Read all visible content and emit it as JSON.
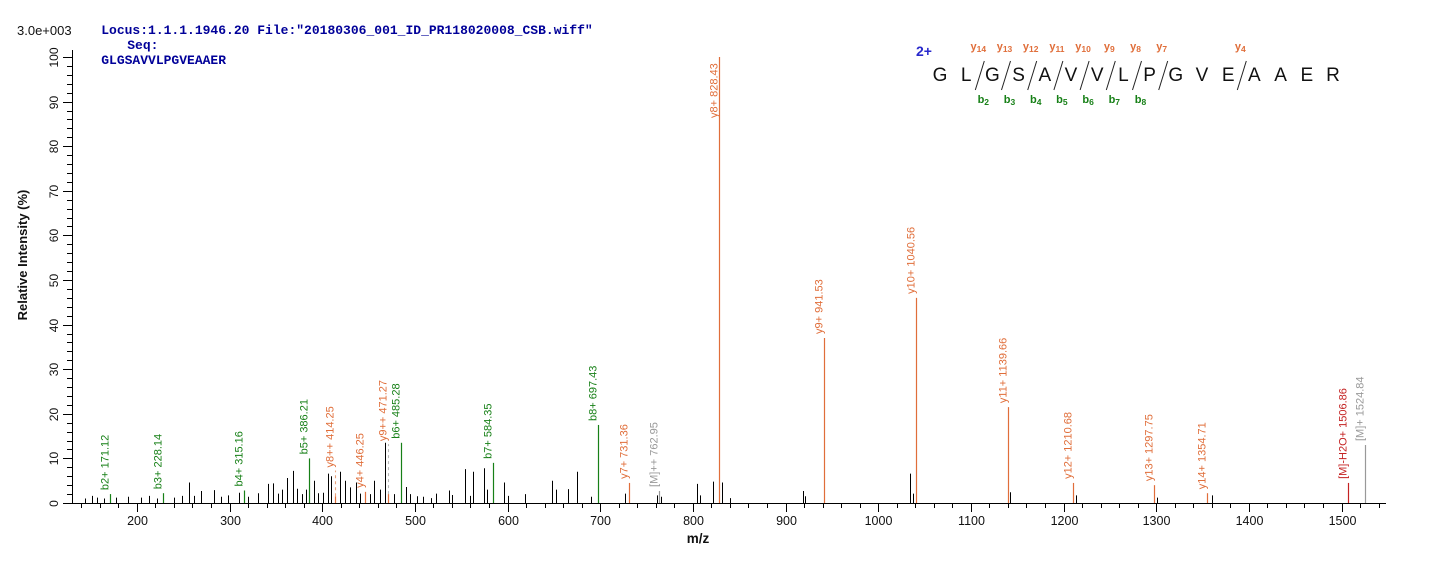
{
  "header": {
    "locus_file": "Locus:1.1.1.1946.20 File:\"20180306_001_ID_PR118020008_CSB.wiff\"",
    "seq_label": "Seq:",
    "seq": "GLGSAVVLPGVEAAER"
  },
  "scale_label": "3.0e+003",
  "colors": {
    "b_ion": "#178017",
    "y_ion": "#E06E3A",
    "precursor": "#999999",
    "precursor_loss": "#C42222",
    "header_text": "#000099",
    "charge_label": "#2929CC",
    "axis": "#000000",
    "background_peak": "#000000",
    "leader_dash_orange": "#E8A37E",
    "leader_dash_gray": "#b8b8b8"
  },
  "chart_data": {
    "type": "bar",
    "title": "",
    "xlabel": "m/z",
    "ylabel": "Relative  Intensity (%)",
    "x_axis_range": [
      130,
      1548
    ],
    "ylim": [
      0,
      100
    ],
    "x_major_ticks": [
      200,
      300,
      400,
      500,
      600,
      700,
      800,
      900,
      1000,
      1100,
      1200,
      1300,
      1400,
      1500
    ],
    "x_minor_step": 20,
    "y_major_step": 10,
    "y_minor_step": 2,
    "intensity_scale_max": "3.0e+003",
    "peaks": [
      {
        "mz": 171.12,
        "intensity": 2.0,
        "label": "b2+ 171.12",
        "series": "b"
      },
      {
        "mz": 228.14,
        "intensity": 2.2,
        "label": "b3+ 228.14",
        "series": "b"
      },
      {
        "mz": 315.16,
        "intensity": 2.8,
        "label": "b4+ 315.16",
        "series": "b"
      },
      {
        "mz": 386.21,
        "intensity": 10.0,
        "label": "b5+ 386.21",
        "series": "b"
      },
      {
        "mz": 414.25,
        "intensity": 1.5,
        "label": "y8++ 414.25",
        "series": "y",
        "leader_top": 7.3,
        "leader_color": "leader_dash_orange"
      },
      {
        "mz": 446.25,
        "intensity": 2.5,
        "label": "y4+ 446.25",
        "series": "y"
      },
      {
        "mz": 471.27,
        "intensity": 2.0,
        "label": "y9++ 471.27",
        "series": "y",
        "leader_top": 13.2,
        "leader_color": "leader_dash_gray"
      },
      {
        "mz": 485.28,
        "intensity": 13.5,
        "label": "b6+ 485.28",
        "series": "b"
      },
      {
        "mz": 584.35,
        "intensity": 9.0,
        "label": "b7+ 584.35",
        "series": "b"
      },
      {
        "mz": 697.43,
        "intensity": 17.5,
        "label": "b8+ 697.43",
        "series": "b"
      },
      {
        "mz": 731.36,
        "intensity": 4.5,
        "label": "y7+ 731.36",
        "series": "y"
      },
      {
        "mz": 762.95,
        "intensity": 2.7,
        "label": "[M]++ 762.95",
        "series": "precursor"
      },
      {
        "mz": 828.43,
        "intensity": 100.0,
        "label": "y8+ 828.43",
        "series": "y"
      },
      {
        "mz": 941.53,
        "intensity": 37.0,
        "label": "y9+ 941.53",
        "series": "y"
      },
      {
        "mz": 1040.56,
        "intensity": 46.0,
        "label": "y10+ 1040.56",
        "series": "y"
      },
      {
        "mz": 1139.66,
        "intensity": 21.5,
        "label": "y11+ 1139.66",
        "series": "y"
      },
      {
        "mz": 1210.68,
        "intensity": 4.5,
        "label": "y12+ 1210.68",
        "series": "y"
      },
      {
        "mz": 1297.75,
        "intensity": 4.0,
        "label": "y13+ 1297.75",
        "series": "y"
      },
      {
        "mz": 1354.71,
        "intensity": 2.2,
        "label": "y14+ 1354.71",
        "series": "y"
      },
      {
        "mz": 1506.86,
        "intensity": 4.5,
        "label": "[M]-H2O+ 1506.86",
        "series": "precursor_loss"
      },
      {
        "mz": 1524.84,
        "intensity": 13.0,
        "label": "[M]+ 1524.84",
        "series": "precursor"
      }
    ],
    "background_peaks": [
      [
        144,
        1.0
      ],
      [
        152,
        1.6
      ],
      [
        157,
        1.2
      ],
      [
        164,
        1.0
      ],
      [
        178,
        1.2
      ],
      [
        190,
        1.4
      ],
      [
        205,
        1.2
      ],
      [
        213,
        1.6
      ],
      [
        222,
        1.0
      ],
      [
        240,
        1.2
      ],
      [
        249,
        1.6
      ],
      [
        256,
        4.6
      ],
      [
        262,
        1.6
      ],
      [
        269,
        2.7
      ],
      [
        283,
        2.9
      ],
      [
        291,
        1.4
      ],
      [
        298,
        1.7
      ],
      [
        310,
        2.3
      ],
      [
        320,
        1.4
      ],
      [
        331,
        2.2
      ],
      [
        341,
        4.3
      ],
      [
        347,
        4.4
      ],
      [
        352,
        2.1
      ],
      [
        357,
        3.0
      ],
      [
        362,
        5.6
      ],
      [
        368,
        7.2
      ],
      [
        373,
        3.2
      ],
      [
        378,
        2.0
      ],
      [
        383,
        3.0
      ],
      [
        391,
        5.0
      ],
      [
        396,
        2.2
      ],
      [
        401,
        2.3
      ],
      [
        406,
        6.6
      ],
      [
        410,
        6.0
      ],
      [
        419,
        7.0
      ],
      [
        425,
        5.0
      ],
      [
        430,
        3.5
      ],
      [
        436,
        4.6
      ],
      [
        441,
        2.1
      ],
      [
        452,
        2.0
      ],
      [
        456,
        5.0
      ],
      [
        462,
        3.0
      ],
      [
        468,
        13.5
      ],
      [
        478,
        2.0
      ],
      [
        490,
        3.6
      ],
      [
        495,
        2.0
      ],
      [
        502,
        1.5
      ],
      [
        509,
        1.4
      ],
      [
        517,
        1.1
      ],
      [
        523,
        2.1
      ],
      [
        537,
        2.8
      ],
      [
        540,
        1.8
      ],
      [
        554,
        7.6
      ],
      [
        559,
        1.6
      ],
      [
        563,
        7.0
      ],
      [
        575,
        7.8
      ],
      [
        578,
        3.0
      ],
      [
        596,
        4.6
      ],
      [
        601,
        1.6
      ],
      [
        619,
        2.0
      ],
      [
        648,
        5.0
      ],
      [
        652,
        3.0
      ],
      [
        665,
        3.1
      ],
      [
        675,
        7.0
      ],
      [
        690,
        1.4
      ],
      [
        727,
        2.1
      ],
      [
        761,
        1.7
      ],
      [
        766,
        1.4
      ],
      [
        805,
        4.3
      ],
      [
        808,
        1.7
      ],
      [
        822,
        4.8
      ],
      [
        831,
        4.6
      ],
      [
        840,
        1.1
      ],
      [
        919,
        2.7
      ],
      [
        921,
        1.5
      ],
      [
        1034,
        6.6
      ],
      [
        1038,
        2.1
      ],
      [
        1142,
        2.4
      ],
      [
        1213,
        1.7
      ],
      [
        1301,
        1.2
      ],
      [
        1360,
        1.7
      ]
    ]
  },
  "peptide": {
    "charge": "2+",
    "residues": [
      "G",
      "L",
      "G",
      "S",
      "A",
      "V",
      "V",
      "L",
      "P",
      "G",
      "V",
      "E",
      "A",
      "A",
      "E",
      "R"
    ],
    "y_marks": [
      {
        "gap": 1,
        "num": "14"
      },
      {
        "gap": 2,
        "num": "13"
      },
      {
        "gap": 3,
        "num": "12"
      },
      {
        "gap": 4,
        "num": "11"
      },
      {
        "gap": 5,
        "num": "10"
      },
      {
        "gap": 6,
        "num": "9"
      },
      {
        "gap": 7,
        "num": "8"
      },
      {
        "gap": 8,
        "num": "7"
      },
      {
        "gap": 11,
        "num": "4"
      }
    ],
    "b_marks": [
      {
        "gap": 1,
        "num": "2"
      },
      {
        "gap": 2,
        "num": "3"
      },
      {
        "gap": 3,
        "num": "4"
      },
      {
        "gap": 4,
        "num": "5"
      },
      {
        "gap": 5,
        "num": "6"
      },
      {
        "gap": 6,
        "num": "7"
      },
      {
        "gap": 7,
        "num": "8"
      }
    ]
  }
}
